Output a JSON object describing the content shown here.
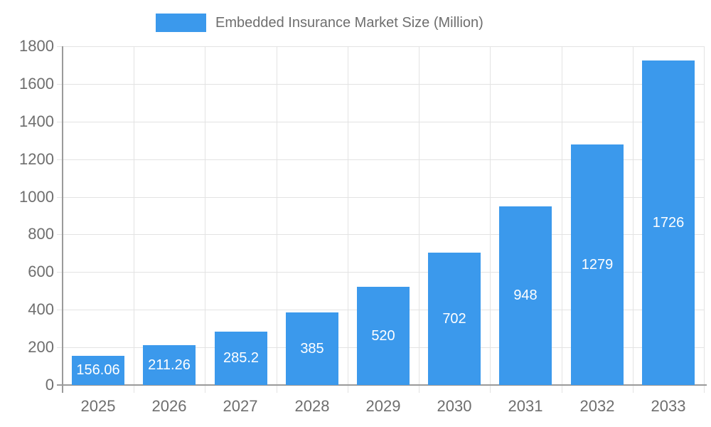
{
  "chart_data": {
    "type": "bar",
    "title": "Embedded Insurance Market Size (Million)",
    "legend": {
      "label": "Embedded Insurance Market Size (Million)",
      "position": "top"
    },
    "categories": [
      "2025",
      "2026",
      "2027",
      "2028",
      "2029",
      "2030",
      "2031",
      "2032",
      "2033"
    ],
    "series": [
      {
        "name": "Embedded Insurance Market Size (Million)",
        "values": [
          156.06,
          211.26,
          285.2,
          385,
          520,
          702,
          948,
          1279,
          1726
        ]
      }
    ],
    "value_labels": [
      "156.06",
      "211.26",
      "285.2",
      "385",
      "520",
      "702",
      "948",
      "1279",
      "1726"
    ],
    "xlabel": "",
    "ylabel": "",
    "ylim": [
      0,
      1800
    ],
    "ytick_step": 200,
    "ytick_labels": [
      "0",
      "200",
      "400",
      "600",
      "800",
      "1000",
      "1200",
      "1400",
      "1600",
      "1800"
    ],
    "grid": true,
    "colors": {
      "bar": "#3B99EC",
      "tick_text": "#6E6E6E",
      "grid_line": "#E3E3E3",
      "axis_line": "#9A9A9A",
      "value_label": "#FFFFFF",
      "background": "#FFFFFF"
    }
  }
}
